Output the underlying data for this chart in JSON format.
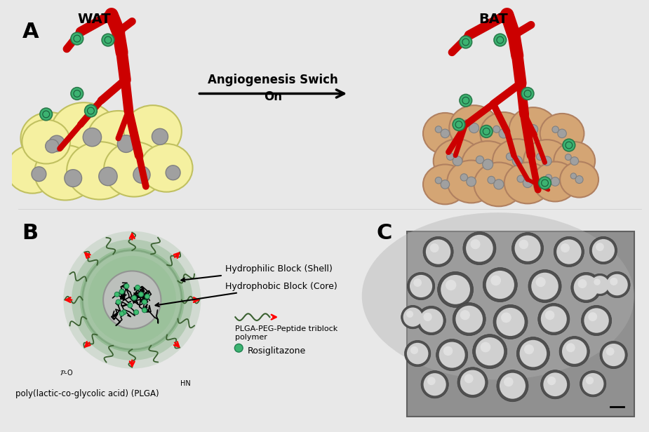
{
  "bg_color": "#e8e8e8",
  "panel_A_label": "A",
  "panel_B_label": "B",
  "panel_C_label": "C",
  "WAT_label": "WAT",
  "BAT_label": "BAT",
  "arrow_text_line1": "Angiogenesis Swich",
  "arrow_text_line2": "On",
  "hydrophilic_label": "Hydrophilic Block (Shell)",
  "hydrophobic_label": "Hydrophobic Block (Core)",
  "polymer_label_line1": "PLGA-PEG-Peptide triblock",
  "polymer_label_line2": "polymer",
  "rosiglitazone_label": "Rosiglitazone",
  "plga_label": "poly(lactic-co-glycolic acid) (PLGA)",
  "red": "#cc0000",
  "green_nanoparticle": "#3cb371",
  "yellow_fat": "#f5f0a0",
  "peach_fat": "#d4a574",
  "gray_nucleus": "#a0a0a0",
  "dark_green_glow": "#2d6a2d",
  "light_green_glow": "#5a9e5a",
  "shell_green": "#4a7c4a"
}
